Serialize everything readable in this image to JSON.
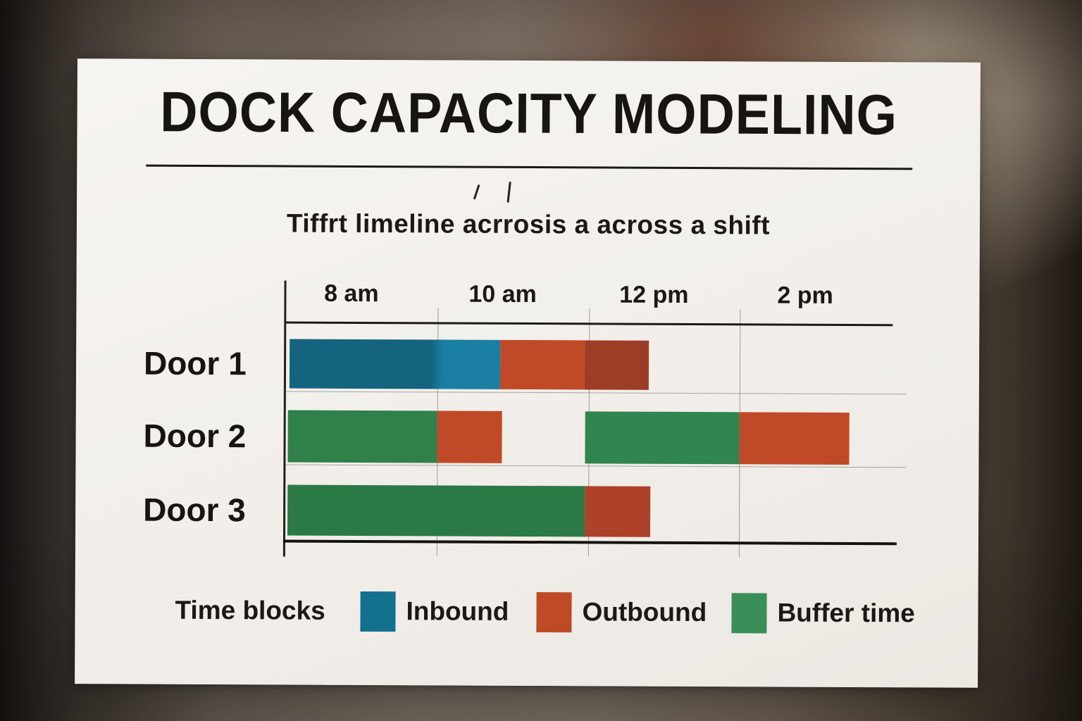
{
  "card": {
    "title": "DOCK CAPACITY MODELING",
    "subtitle": "Tiffrt limeline acrrosis a across a shift"
  },
  "chart_data": {
    "type": "gantt",
    "title": "DOCK CAPACITY MODELING",
    "subtitle": "Tiffrt limeline acrrosis a across a shift",
    "x_ticks": [
      "8 am",
      "10 am",
      "12 pm",
      "2 pm"
    ],
    "x_axis": {
      "start_hour": 8,
      "end_hour": 16,
      "hours_per_column": 2,
      "grid": true
    },
    "rows": [
      {
        "label": "Door 1",
        "segments": [
          {
            "kind": "inbound",
            "start_hour": 8.05,
            "end_hour": 10.83,
            "color": "inbound",
            "color2": "inbound_bright",
            "split": 0.7
          },
          {
            "kind": "outbound",
            "start_hour": 10.83,
            "end_hour": 11.95,
            "color": "outbound"
          },
          {
            "kind": "outbound",
            "start_hour": 11.95,
            "end_hour": 12.8,
            "color": "outbound_dark"
          }
        ]
      },
      {
        "label": "Door 2",
        "segments": [
          {
            "kind": "buffer",
            "start_hour": 8.03,
            "end_hour": 10.0,
            "color": "buffer"
          },
          {
            "kind": "outbound",
            "start_hour": 10.0,
            "end_hour": 10.86,
            "color": "outbound"
          },
          {
            "kind": "buffer",
            "start_hour": 11.96,
            "end_hour": 14.0,
            "color": "buffer_bright"
          },
          {
            "kind": "outbound",
            "start_hour": 14.0,
            "end_hour": 15.45,
            "color": "outbound"
          }
        ]
      },
      {
        "label": "Door 3",
        "segments": [
          {
            "kind": "buffer",
            "start_hour": 8.03,
            "end_hour": 11.96,
            "color": "buffer_dark"
          },
          {
            "kind": "outbound",
            "start_hour": 11.96,
            "end_hour": 12.82,
            "color": "outbound_deep"
          }
        ]
      }
    ],
    "legend": {
      "title": "Time blocks",
      "position": "bottom",
      "items": [
        {
          "label": "Inbound",
          "color": "inbound_legend"
        },
        {
          "label": "Outbound",
          "color": "outbound_legend"
        },
        {
          "label": "Buffer time",
          "color": "buffer_legend"
        }
      ]
    },
    "colors": {
      "inbound": "#14647f",
      "inbound_bright": "#1a7fa2",
      "outbound": "#c04a28",
      "outbound_dark": "#9d3d26",
      "outbound_deep": "#ad4129",
      "buffer": "#2f8049",
      "buffer_bright": "#31854e",
      "buffer_dark": "#2b7a45",
      "inbound_legend": "#14708f",
      "outbound_legend": "#bf4a26",
      "buffer_legend": "#3a8f58"
    }
  }
}
